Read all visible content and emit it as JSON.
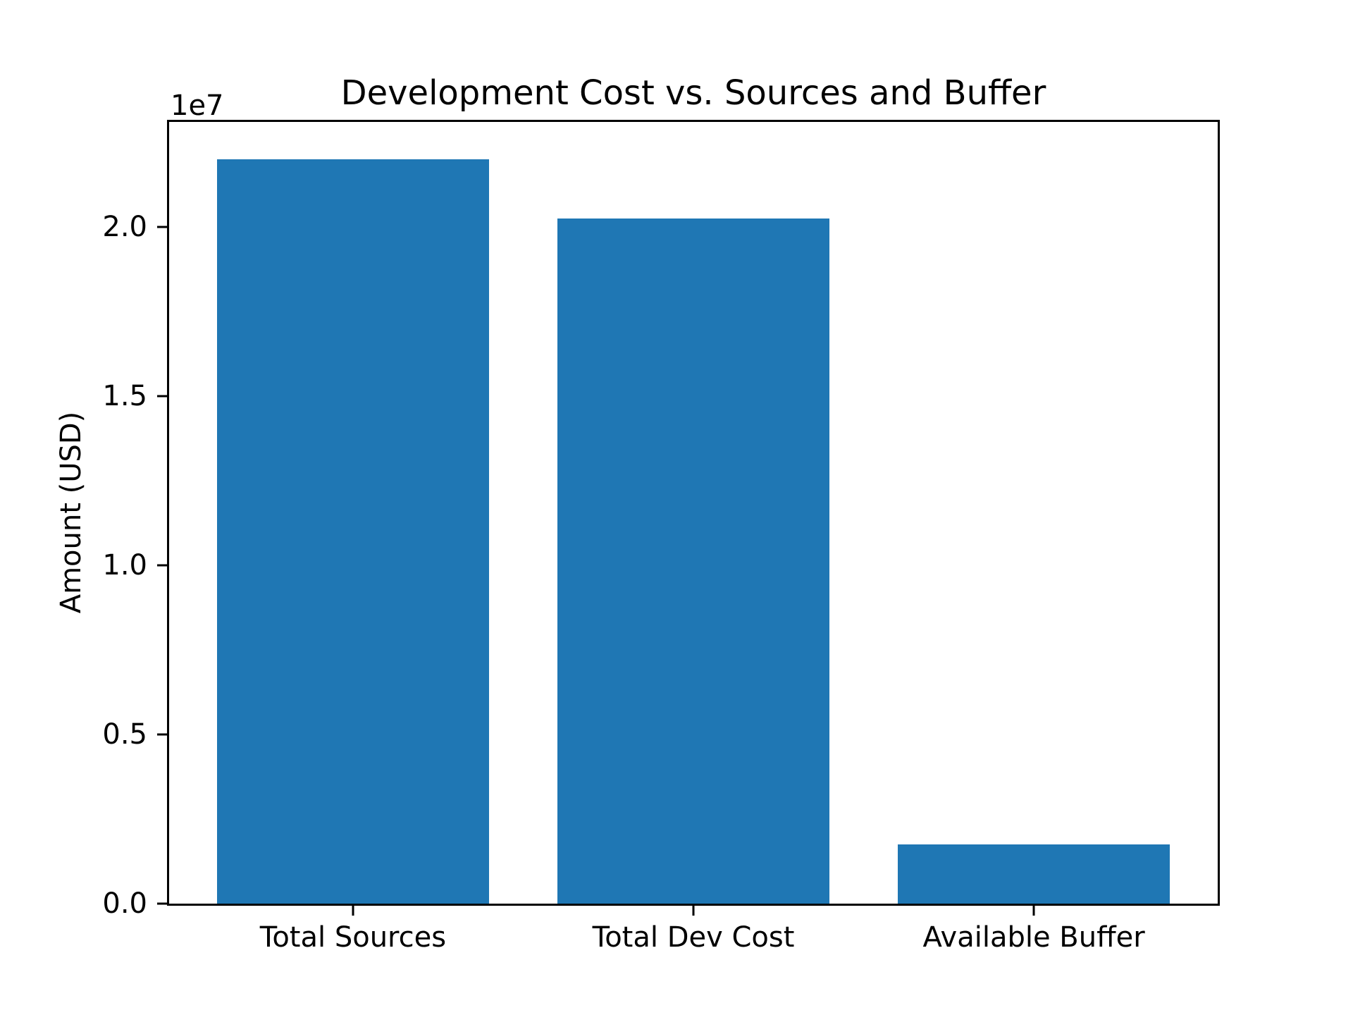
{
  "chart_data": {
    "type": "bar",
    "title": "Development Cost vs. Sources and Buffer",
    "categories": [
      "Total Sources",
      "Total Dev Cost",
      "Available Buffer"
    ],
    "values": [
      22000000,
      20250000,
      1750000
    ],
    "xlabel": "",
    "ylabel": "Amount (USD)",
    "y_scale_offset_label": "1e7",
    "ylim": [
      0,
      23100000
    ],
    "yticks": [
      {
        "value": 0,
        "label": "0.0"
      },
      {
        "value": 5000000,
        "label": "0.5"
      },
      {
        "value": 10000000,
        "label": "1.0"
      },
      {
        "value": 15000000,
        "label": "1.5"
      },
      {
        "value": 20000000,
        "label": "2.0"
      }
    ],
    "bar_color": "#1f77b4",
    "bar_width_fraction": 0.8,
    "x_margin_fraction": 0.04,
    "grid": false,
    "legend": false,
    "axis_color": "#000000",
    "background_color": "#ffffff"
  }
}
